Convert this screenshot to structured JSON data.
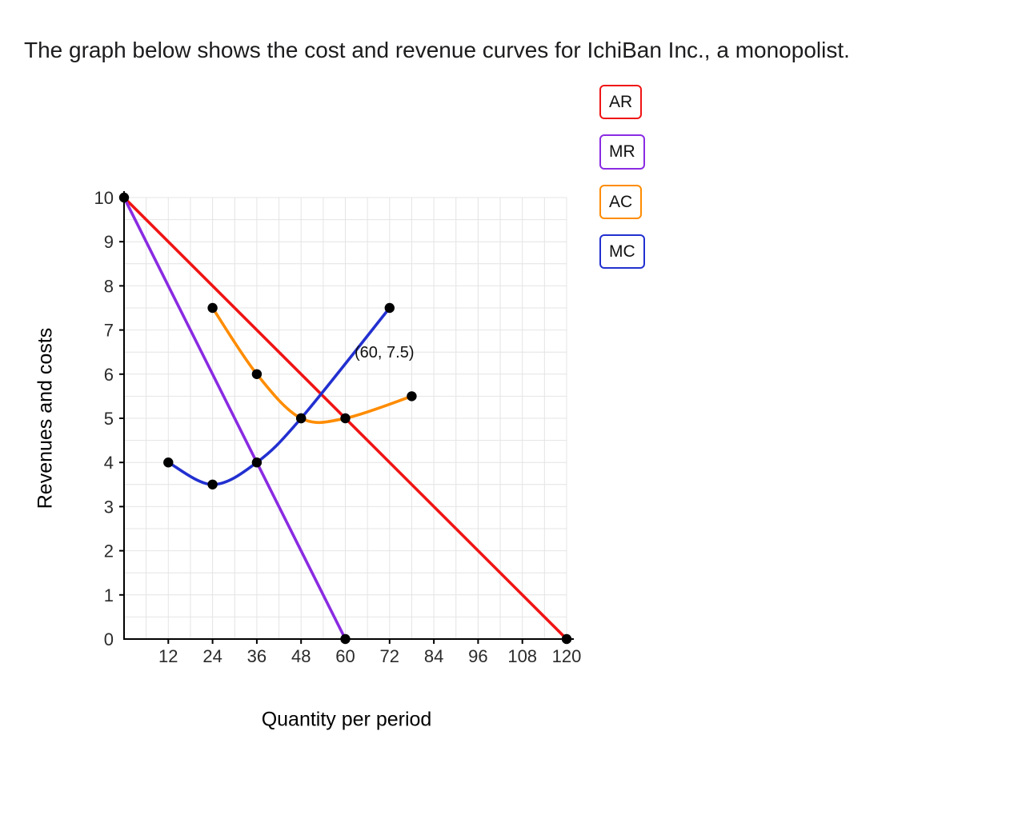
{
  "title": "The graph below shows the cost and revenue curves for IchiBan Inc., a monopolist.",
  "legend": [
    {
      "label": "AR",
      "color": "#f01414"
    },
    {
      "label": "MR",
      "color": "#8a2be2"
    },
    {
      "label": "AC",
      "color": "#ff8c00"
    },
    {
      "label": "MC",
      "color": "#2230d0"
    }
  ],
  "chart_data": {
    "type": "line",
    "title": "",
    "xlabel": "Quantity per period",
    "ylabel": "Revenues and costs",
    "xlim": [
      0,
      120
    ],
    "ylim": [
      0,
      10
    ],
    "xticks": [
      12,
      24,
      36,
      48,
      60,
      72,
      84,
      96,
      108,
      120
    ],
    "yticks": [
      0,
      1,
      2,
      3,
      4,
      5,
      6,
      7,
      8,
      9,
      10
    ],
    "grid": true,
    "grid_step_x": 6,
    "grid_step_y": 0.5,
    "annotation": {
      "text": "(60, 7.5)",
      "x": 62.5,
      "y": 6.38
    },
    "marker_color": "#000000",
    "series": [
      {
        "name": "AR",
        "color": "#f01414",
        "smooth": false,
        "points": [
          [
            0,
            10
          ],
          [
            120,
            0
          ]
        ],
        "markers": [
          [
            0,
            10
          ],
          [
            120,
            0
          ]
        ]
      },
      {
        "name": "MR",
        "color": "#8a2be2",
        "smooth": false,
        "points": [
          [
            0,
            10
          ],
          [
            60,
            0
          ]
        ],
        "markers": [
          [
            60,
            0
          ]
        ]
      },
      {
        "name": "AC",
        "color": "#ff8c00",
        "smooth": true,
        "points": [
          [
            24,
            7.5
          ],
          [
            36,
            6
          ],
          [
            48,
            5
          ],
          [
            60,
            5
          ],
          [
            78,
            5.5
          ]
        ],
        "markers": [
          [
            24,
            7.5
          ],
          [
            36,
            6
          ],
          [
            48,
            5
          ],
          [
            60,
            5
          ],
          [
            78,
            5.5
          ]
        ]
      },
      {
        "name": "MC",
        "color": "#2230d0",
        "smooth": true,
        "points": [
          [
            12,
            4
          ],
          [
            24,
            3.5
          ],
          [
            36,
            4
          ],
          [
            48,
            5
          ],
          [
            72,
            7.5
          ]
        ],
        "markers": [
          [
            12,
            4
          ],
          [
            24,
            3.5
          ],
          [
            36,
            4
          ],
          [
            48,
            5
          ],
          [
            72,
            7.5
          ]
        ]
      }
    ]
  }
}
